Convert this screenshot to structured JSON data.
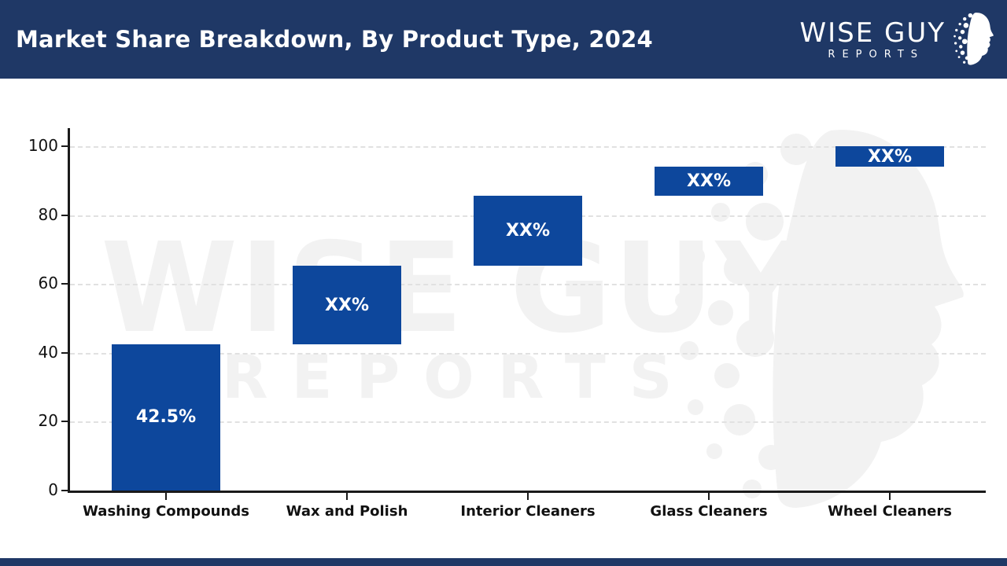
{
  "header": {
    "title": "Market Share Breakdown, By Product Type, 2024",
    "logo": {
      "line1": "WISE GUY",
      "line2": "REPORTS"
    }
  },
  "watermark": {
    "line1": "WISE GUY",
    "line2": "REPORTS"
  },
  "chart_data": {
    "type": "bar",
    "subtype": "waterfall",
    "title": "Market Share Breakdown, By Product Type, 2024",
    "categories": [
      "Washing Compounds",
      "Wax and Polish",
      "Interior Cleaners",
      "Glass Cleaners",
      "Wheel Cleaners"
    ],
    "segments": [
      {
        "category": "Washing Compounds",
        "start": 0,
        "end": 42.5,
        "label": "42.5%"
      },
      {
        "category": "Wax and Polish",
        "start": 42.5,
        "end": 65.2,
        "label": "XX%"
      },
      {
        "category": "Interior Cleaners",
        "start": 65.2,
        "end": 85.6,
        "label": "XX%"
      },
      {
        "category": "Glass Cleaners",
        "start": 85.6,
        "end": 94.0,
        "label": "XX%"
      },
      {
        "category": "Wheel Cleaners",
        "start": 94.0,
        "end": 100.0,
        "label": "XX%"
      }
    ],
    "yticks": [
      0,
      20,
      40,
      60,
      80,
      100
    ],
    "ylim": [
      0,
      100
    ],
    "xlabel": "",
    "ylabel": "",
    "grid": "horizontal dashed",
    "legend": "none",
    "bar_color": "#0d479c",
    "bar_label_color": "#ffffff"
  },
  "colors": {
    "header_bg": "#1f3866",
    "footer_bg": "#1f3866",
    "bar": "#0d479c",
    "grid": "#e1e1e1",
    "axis": "#1a1a1a",
    "watermark": "#f2f2f2"
  }
}
